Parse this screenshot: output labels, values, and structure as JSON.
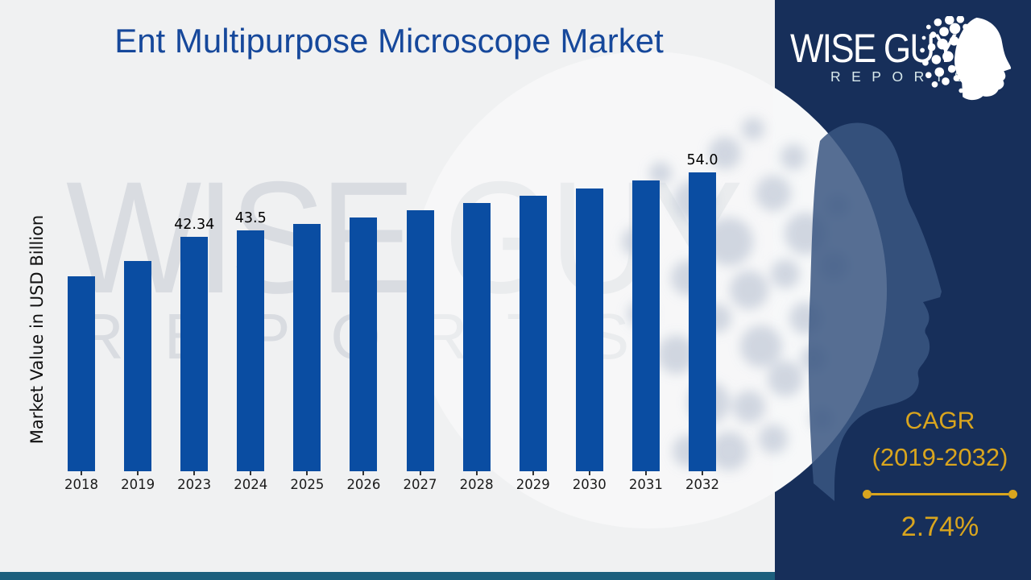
{
  "page": {
    "title": "Ent Multipurpose Microscope Market"
  },
  "chart_data": {
    "type": "bar",
    "title": "Ent Multipurpose Microscope Market",
    "xlabel": "",
    "ylabel": "Market Value in USD Billion",
    "categories": [
      "2018",
      "2019",
      "2023",
      "2024",
      "2025",
      "2026",
      "2027",
      "2028",
      "2029",
      "2030",
      "2031",
      "2032"
    ],
    "values": [
      35.2,
      38.0,
      42.34,
      43.5,
      44.69,
      45.92,
      47.18,
      48.47,
      49.8,
      51.16,
      52.56,
      54.0
    ],
    "bar_labels": [
      "",
      "",
      "42.34",
      "43.5",
      "",
      "",
      "",
      "",
      "",
      "",
      "",
      "54.0"
    ],
    "bar_color": "#0a4da2",
    "ylim": [
      0,
      56
    ],
    "grid": false,
    "legend": "none"
  },
  "logo": {
    "wordmark": "WISE GUY",
    "subtext": "REPORTS"
  },
  "watermark": {
    "wordmark": "WISE GUY",
    "subtext": "REPORTS"
  },
  "cagr": {
    "heading": "CAGR",
    "range": "(2019-2032)",
    "value": "2.74%"
  },
  "colors": {
    "bar": "#0a4da2",
    "title_text": "#16489b",
    "navy_panel": "#172f5a",
    "face_silhouette": "#3a5681",
    "gold_accent": "#d9a51e",
    "teal_bar": "#1d5f7d",
    "background": "#f0f1f2",
    "watermark_gray": "#d9dce1"
  }
}
